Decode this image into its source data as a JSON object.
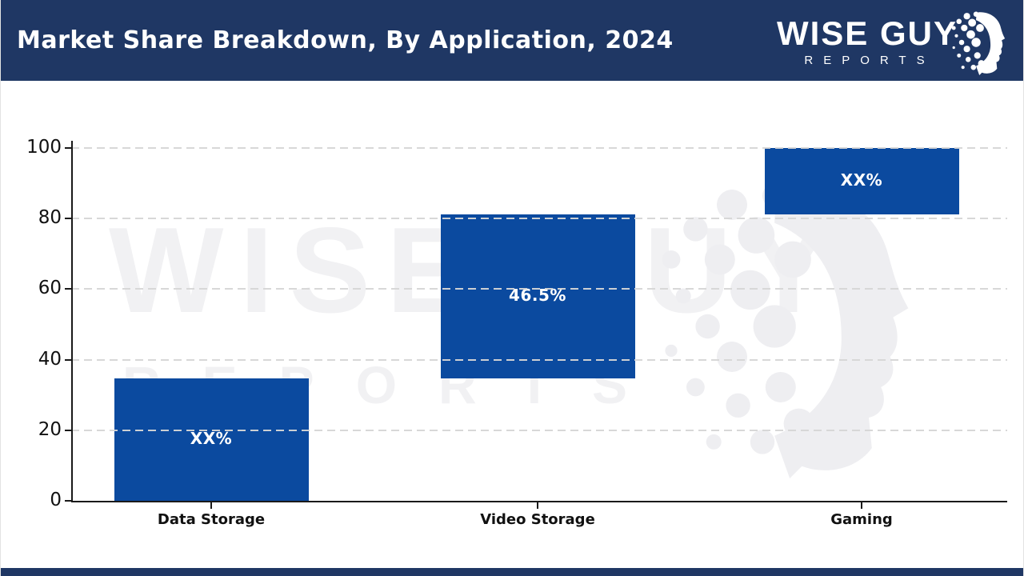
{
  "header": {
    "title": "Market Share Breakdown, By Application, 2024",
    "logo": {
      "line1": "WISE GUY",
      "line2": "REPORTS"
    }
  },
  "watermark": {
    "line1": "WISE GUY",
    "line2": "REPORTS"
  },
  "footer": {},
  "chart_data": {
    "type": "bar",
    "variant": "floating-waterfall",
    "title": "Market Share Breakdown, By Application, 2024",
    "categories": [
      "Data Storage",
      "Video Storage",
      "Gaming"
    ],
    "bases": [
      0,
      34.7,
      81.2
    ],
    "values": [
      34.7,
      46.5,
      18.8
    ],
    "bar_labels": [
      "XX%",
      "46.5%",
      "XX%"
    ],
    "segment_tops": [
      34.7,
      81.2,
      100
    ],
    "xlabel": "",
    "ylabel": "",
    "ylim": [
      0,
      100
    ],
    "yticks": [
      0,
      20,
      40,
      60,
      80,
      100
    ],
    "grid": {
      "axis": "y",
      "style": "dashed",
      "over_bars": true
    },
    "legend": "none"
  },
  "colors": {
    "header_bg": "#1f3764",
    "footer_bg": "#1f3764",
    "bar": "#0b4a9f",
    "bar_label": "#ffffff",
    "axis": "#1a1a1a",
    "grid": "#d6d6d6",
    "watermark": "#f1f1f3",
    "background": "#ffffff"
  }
}
